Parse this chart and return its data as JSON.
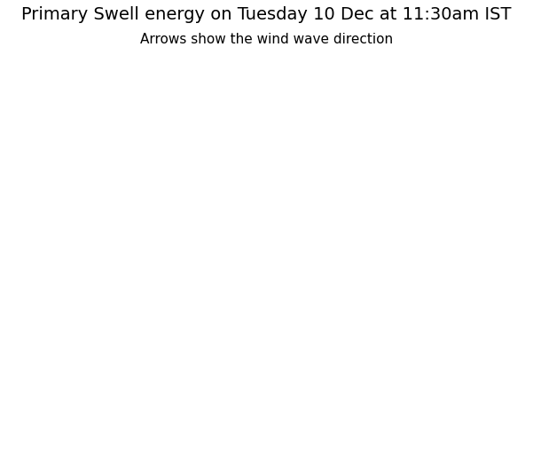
{
  "title": "Primary Swell energy on Tuesday 10 Dec at 11:30am IST",
  "subtitle": "Arrows show the wind wave direction",
  "title_fontsize": 14,
  "subtitle_fontsize": 11,
  "title_color": "#000000",
  "background_color": "#ffffff",
  "map_extent": [
    60,
    105,
    5,
    45
  ],
  "land_color": "#aaaaaa",
  "ocean_color": "#ffffff",
  "border_color": "#000000",
  "border_linewidth": 0.8,
  "header_bg": "#f0f0f0",
  "fig_width": 6.01,
  "fig_height": 5.12
}
